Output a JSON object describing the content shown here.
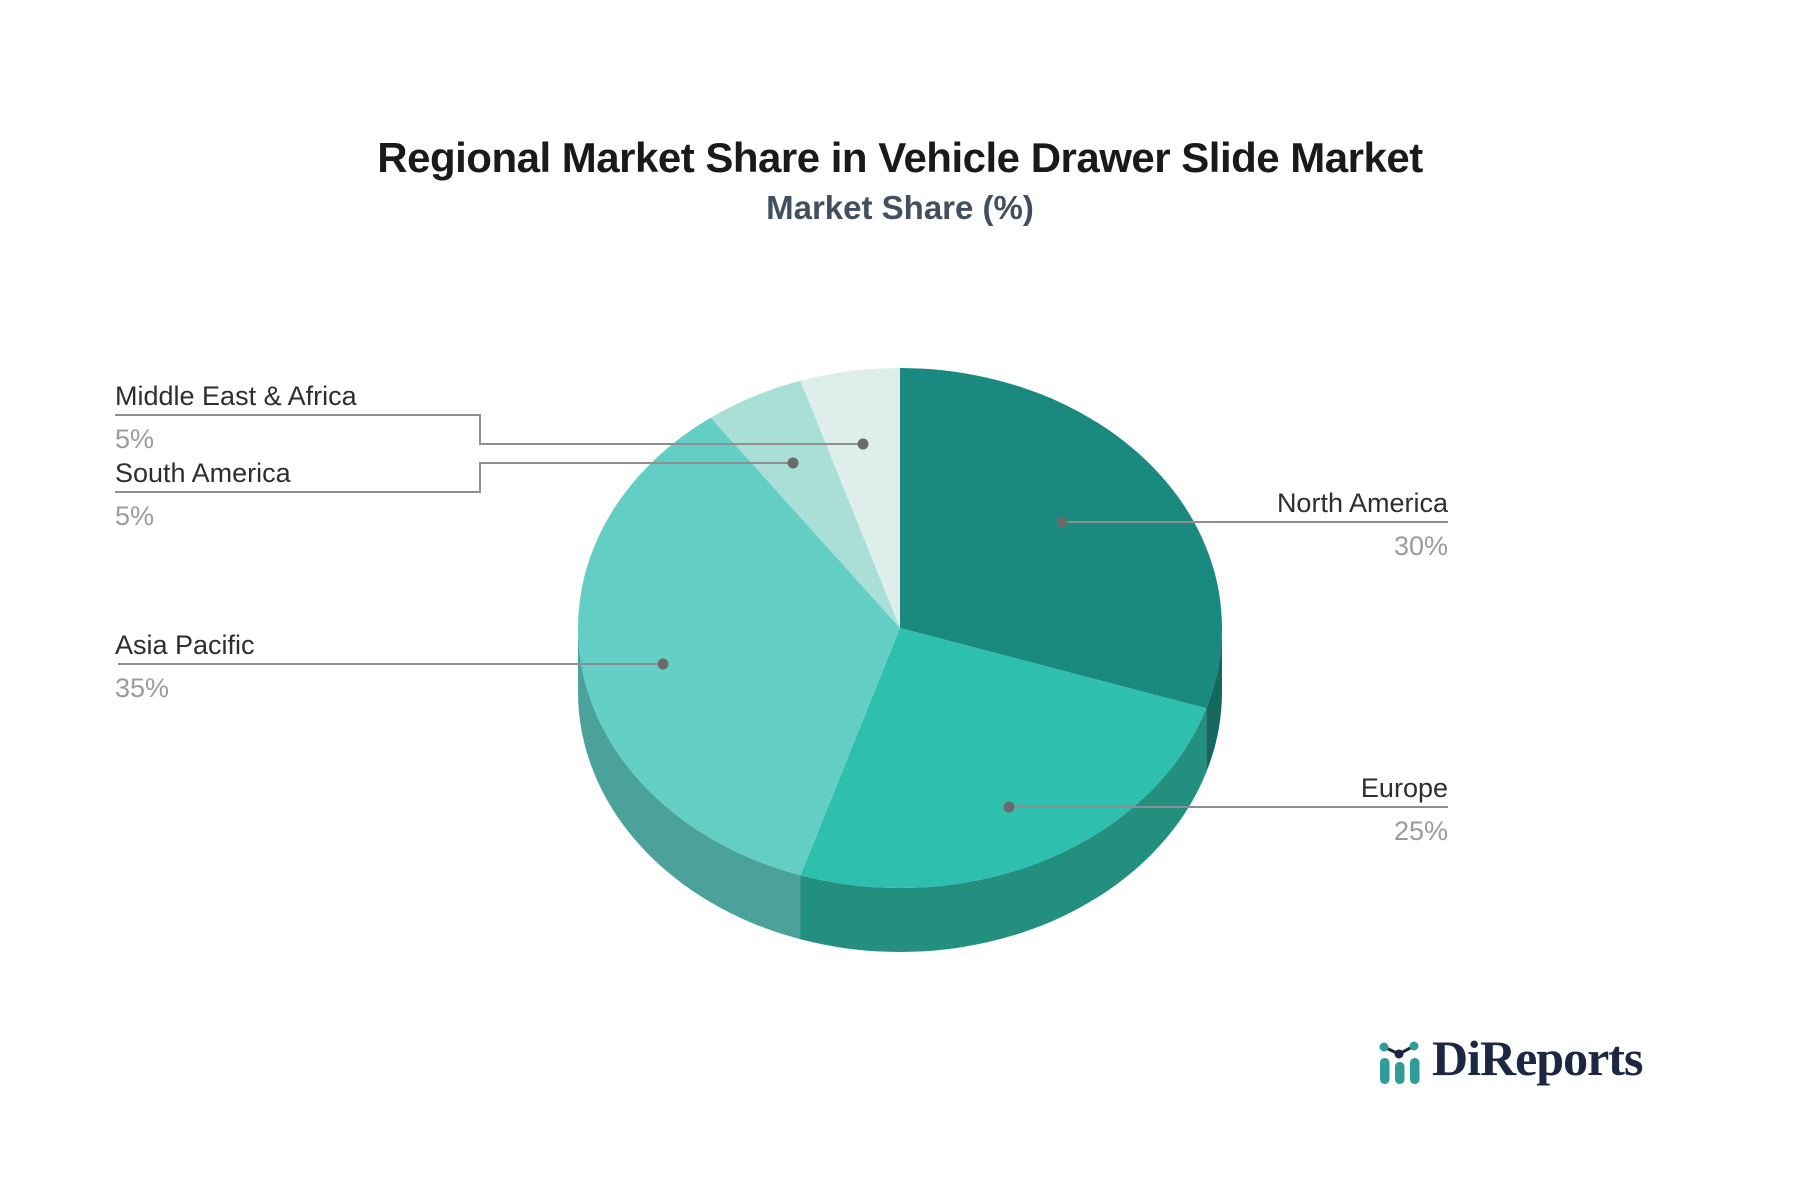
{
  "title": "Regional Market Share in Vehicle Drawer Slide Market",
  "subtitle": "Market Share (%)",
  "chart_data": {
    "type": "pie",
    "style": "3d",
    "title": "Regional Market Share in Vehicle Drawer Slide Market",
    "subtitle": "Market Share (%)",
    "unit": "%",
    "direction": "clockwise",
    "start_angle_deg": 0,
    "legend_position": "callout-labels",
    "categories": [
      "North America",
      "Europe",
      "Asia Pacific",
      "South America",
      "Middle East & Africa"
    ],
    "values": [
      30,
      25,
      35,
      5,
      5
    ],
    "slices": [
      {
        "name": "North America",
        "value": 30,
        "label": "30%",
        "color": "#1a8a80",
        "side_color": "#146860"
      },
      {
        "name": "Europe",
        "value": 25,
        "label": "25%",
        "color": "#2fbfae",
        "side_color": "#23907f"
      },
      {
        "name": "Asia Pacific",
        "value": 35,
        "label": "35%",
        "color": "#63cec3",
        "side_color": "#4ba29a"
      },
      {
        "name": "South America",
        "value": 5,
        "label": "5%",
        "color": "#aadfd7",
        "side_color": "#8fc4bc"
      },
      {
        "name": "Middle East & Africa",
        "value": 5,
        "label": "5%",
        "color": "#ddeeeb",
        "side_color": "#c3d9d4"
      }
    ],
    "callout_line_color": "#8f8f8f",
    "callout_dot_color": "#6a6a6a"
  },
  "logo": {
    "text": "DiReports",
    "icon": "bar-line-chart-icon",
    "text_color": "#1b2743",
    "icon_teal": "#2f9c96",
    "icon_navy": "#1b2743"
  }
}
